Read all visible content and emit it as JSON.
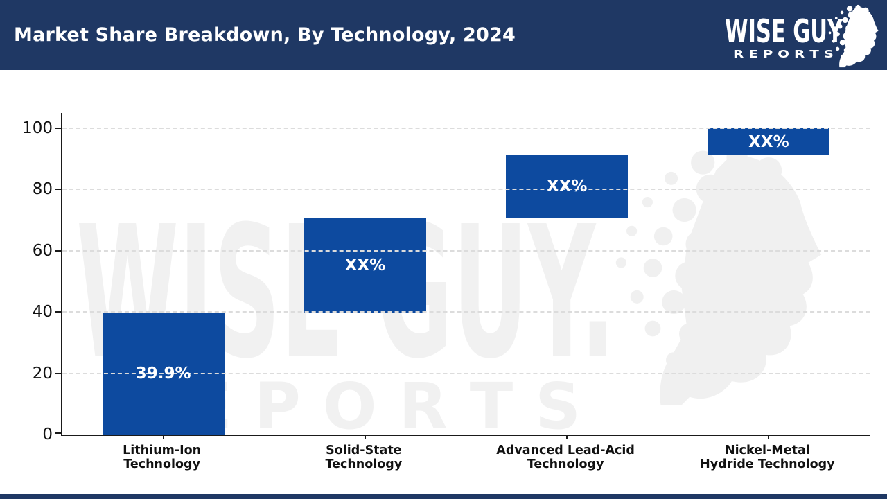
{
  "header": {
    "title": "Market Share Breakdown, By Technology, 2024",
    "background": "#1f3864",
    "logo": {
      "line1": "WISE GUY",
      "line2": "R E P O R T S",
      "face_icon": "dotted-head-profile",
      "color": "#ffffff"
    }
  },
  "watermark": {
    "line1": "WISE GUY.",
    "line2": "R E P O R T S",
    "face_icon": "dotted-head-profile",
    "color": "#f1f1f1"
  },
  "footer": {
    "background": "#1f3864"
  },
  "chart_data": {
    "type": "bar",
    "subtype": "waterfall",
    "title": "Market Share Breakdown, By Technology, 2024",
    "categories": [
      "Lithium-Ion\nTechnology",
      "Solid-State\nTechnology",
      "Advanced Lead-Acid\nTechnology",
      "Nickel-Metal\nHydride Technology"
    ],
    "segments": [
      {
        "category": "Lithium-Ion Technology",
        "start": 0,
        "end": 39.9,
        "label": "39.9%"
      },
      {
        "category": "Solid-State Technology",
        "start": 39.9,
        "end": 70.7,
        "label": "XX%"
      },
      {
        "category": "Advanced Lead-Acid Technology",
        "start": 70.7,
        "end": 91.1,
        "label": "XX%"
      },
      {
        "category": "Nickel-Metal Hydride Technology",
        "start": 91.1,
        "end": 100,
        "label": "XX%"
      }
    ],
    "yticks": [
      0,
      20,
      40,
      60,
      80,
      100
    ],
    "ylim": [
      0,
      105
    ],
    "xlabel": "",
    "ylabel": "",
    "bar_color": "#0d4a9f",
    "bar_label_color": "#ffffff",
    "grid": {
      "horizontal": true,
      "style": "dashed",
      "color": "#dcdcdc"
    },
    "axis_color": "#1a1a1a",
    "legend": "none"
  }
}
